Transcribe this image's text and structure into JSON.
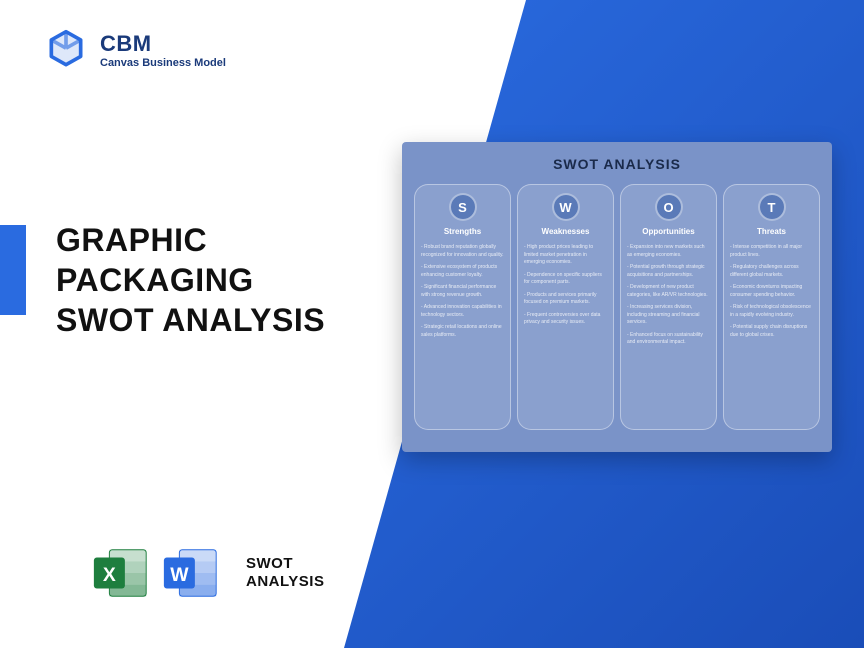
{
  "logo": {
    "title": "CBM",
    "subtitle": "Canvas Business Model",
    "icon_color": "#2a6be0"
  },
  "main_title": "GRAPHIC\nPACKAGING\nSWOT ANALYSIS",
  "diagonal_bg_color": "#2a6be0",
  "accent_bar_color": "#2a6be0",
  "swot_card": {
    "title": "SWOT ANALYSIS",
    "bg_color": "#7a93c8",
    "circle_bg": "#5a7ab8",
    "columns": [
      {
        "letter": "S",
        "title": "Strengths",
        "items": [
          "Robust brand reputation globally recognized for innovation and quality.",
          "Extensive ecosystem of products enhancing customer loyalty.",
          "Significant financial performance with strong revenue growth.",
          "Advanced innovation capabilities in technology sectors.",
          "Strategic retail locations and online sales platforms."
        ]
      },
      {
        "letter": "W",
        "title": "Weaknesses",
        "items": [
          "High product prices leading to limited market penetration in emerging economies.",
          "Dependence on specific suppliers for component parts.",
          "Products and services primarily focused on premium markets.",
          "Frequent controversies over data privacy and security issues."
        ]
      },
      {
        "letter": "O",
        "title": "Opportunities",
        "items": [
          "Expansion into new markets such as emerging economies.",
          "Potential growth through strategic acquisitions and partnerships.",
          "Development of new product categories, like AR/VR technologies.",
          "Increasing services division, including streaming and financial services.",
          "Enhanced focus on sustainability and environmental impact."
        ]
      },
      {
        "letter": "T",
        "title": "Threats",
        "items": [
          "Intense competition in all major product lines.",
          "Regulatory challenges across different global markets.",
          "Economic downturns impacting consumer spending behavior.",
          "Risk of technological obsolescence in a rapidly evolving industry.",
          "Potential supply chain disruptions due to global crises."
        ]
      }
    ]
  },
  "footer": {
    "label": "SWOT\nANALYSIS",
    "excel_color": "#1e7e3e",
    "word_color": "#2a6be0"
  }
}
